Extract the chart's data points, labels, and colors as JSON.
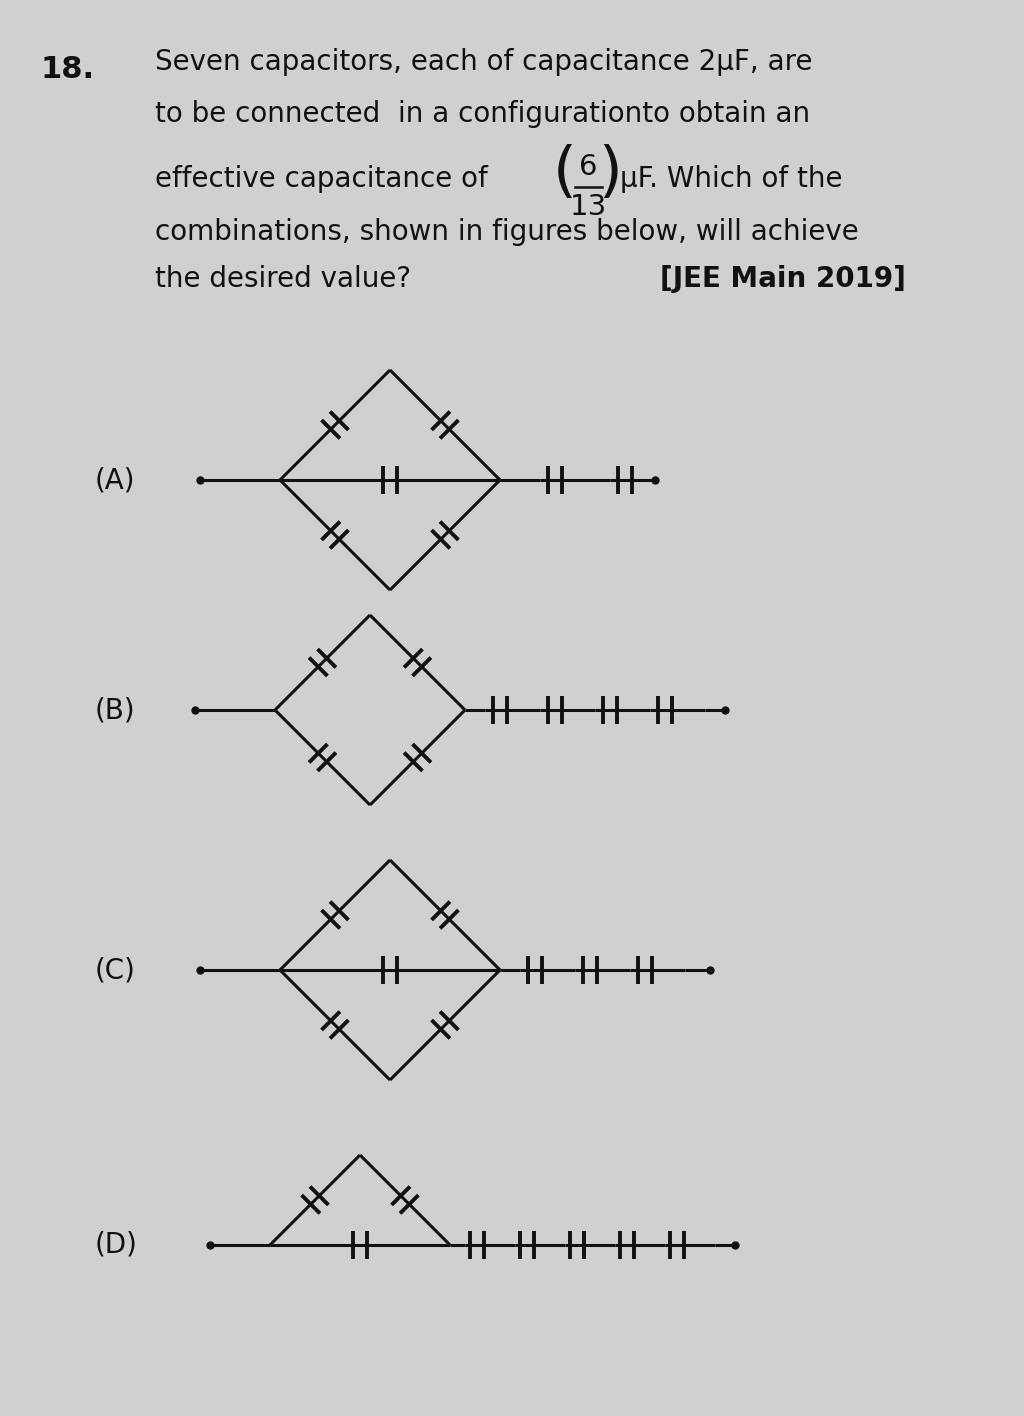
{
  "bg_color": "#d0d0d0",
  "text_color": "#111111",
  "line_color": "#111111",
  "title_number": "18.",
  "q1": "Seven capacitors, each of capacitance 2μF, are",
  "q2": "to be connected  in a configurationto obtain an",
  "q3": "effective capacitance of",
  "q4": "μF. Which of the",
  "q5": "combinations, shown in figures below, will achieve",
  "q6": "the desired value?",
  "source": "[JEE Main 2019]",
  "frac_num": "6",
  "frac_den": "13"
}
